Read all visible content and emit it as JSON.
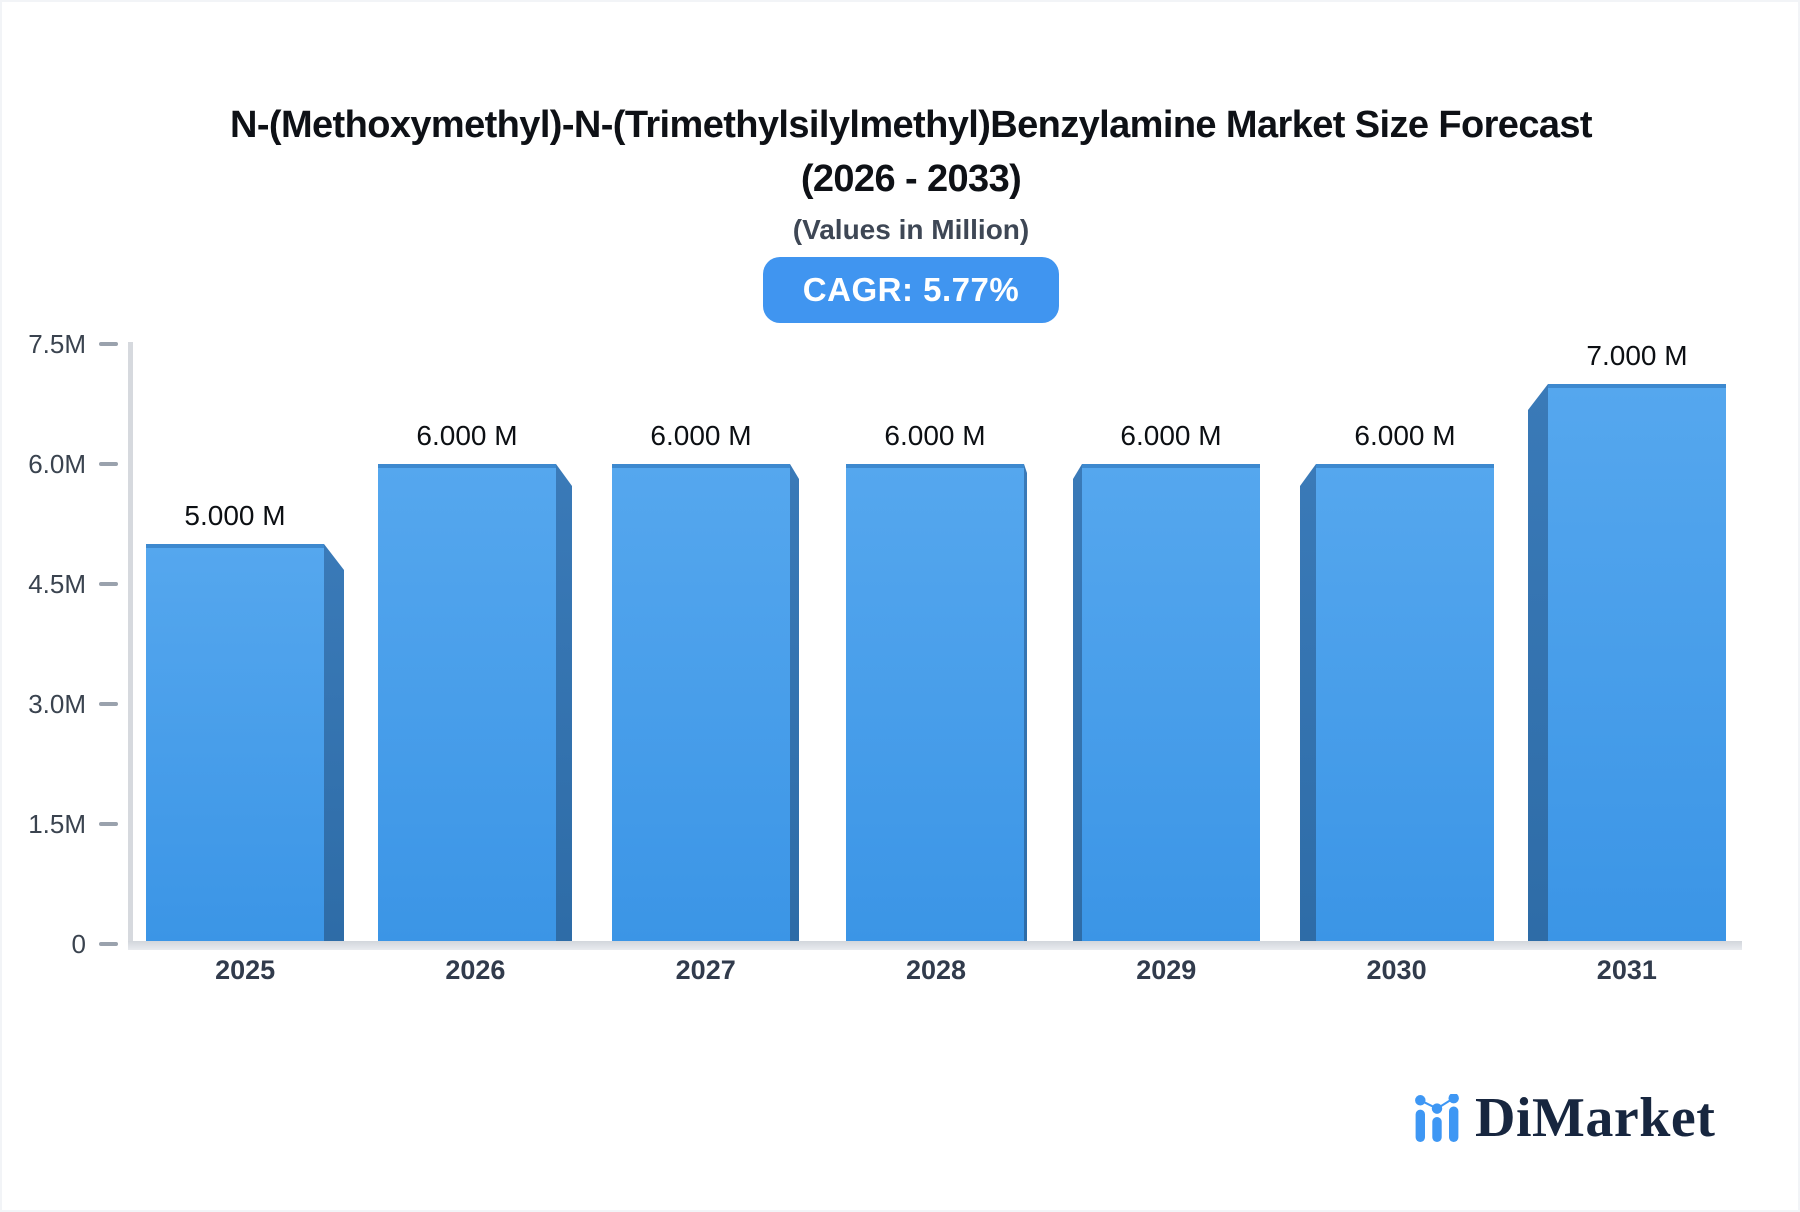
{
  "header": {
    "title_line1": "N-(Methoxymethyl)-N-(Trimethylsilylmethyl)Benzylamine Market Size Forecast",
    "title_line2": "(2026 - 2033)",
    "subtitle": "(Values in Million)",
    "cagr_label": "CAGR: 5.77%"
  },
  "logo": {
    "text": "DiMarket",
    "icon": "bar-line-chart-icon",
    "icon_color": "#3E97F4",
    "text_color": "#17263F"
  },
  "chart_data": {
    "type": "bar",
    "title": "N-(Methoxymethyl)-N-(Trimethylsilylmethyl)Benzylamine Market Size Forecast (2026 - 2033)",
    "subtitle": "(Values in Million)",
    "cagr_percent": 5.77,
    "unit": "Million",
    "categories": [
      "2025",
      "2026",
      "2027",
      "2028",
      "2029",
      "2030",
      "2031"
    ],
    "values": [
      5.0,
      6.0,
      6.0,
      6.0,
      6.0,
      6.0,
      7.0
    ],
    "bar_labels": [
      "5.000 M",
      "6.000 M",
      "6.000 M",
      "6.000 M",
      "6.000 M",
      "6.000 M",
      "7.000 M"
    ],
    "ylim": [
      0,
      7.5
    ],
    "yticks": [
      {
        "label": "7.5M",
        "value": 7.5
      },
      {
        "label": "6.0M",
        "value": 6.0
      },
      {
        "label": "4.5M",
        "value": 4.5
      },
      {
        "label": "3.0M",
        "value": 3.0
      },
      {
        "label": "1.5M",
        "value": 1.5
      },
      {
        "label": "0",
        "value": 0
      }
    ],
    "grid": false,
    "legend": false,
    "bar_style": "3d-extruded",
    "colors": {
      "bar_fill_top": "#55A7EE",
      "bar_fill_bottom": "#3B95E6",
      "bar_top_edge": "#3D89CF",
      "bar_side_light": "#3A7AB8",
      "bar_side_dark": "#2E6CA7",
      "badge_bg": "#4095F0",
      "axis_line": "#D6D9DE",
      "tick_dash": "#9AA2AD",
      "tick_text": "#3A434F",
      "category_text": "#313B4C",
      "value_text": "#0C0F13",
      "title_text": "#0E1116",
      "subtitle_text": "#3E4755"
    }
  }
}
